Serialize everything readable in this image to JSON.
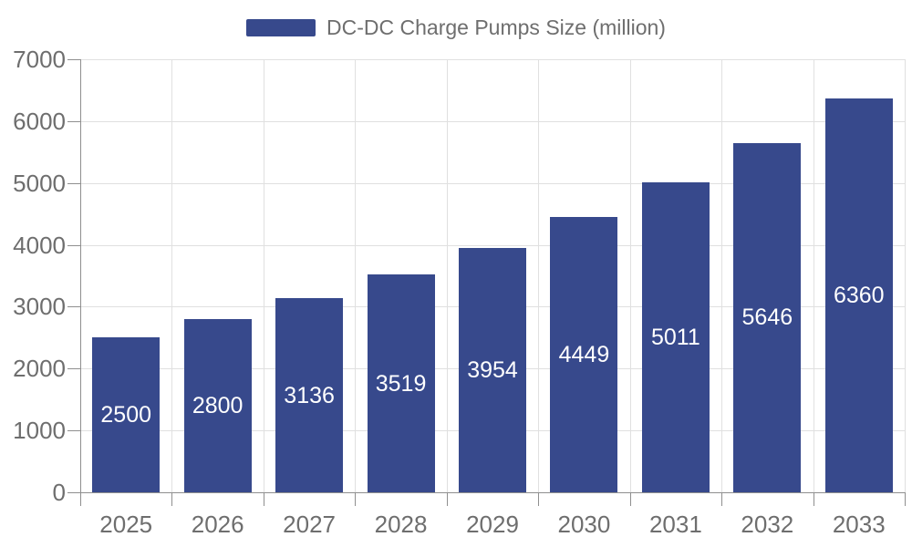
{
  "legend": {
    "label": "DC-DC Charge Pumps Size (million)"
  },
  "chart_data": {
    "type": "bar",
    "title": "DC-DC Charge Pumps Size (million)",
    "categories": [
      "2025",
      "2026",
      "2027",
      "2028",
      "2029",
      "2030",
      "2031",
      "2032",
      "2033"
    ],
    "values": [
      2500,
      2800,
      3136,
      3519,
      3954,
      4449,
      5011,
      5646,
      6360
    ],
    "series_name": "DC-DC Charge Pumps Size (million)",
    "xlabel": "",
    "ylabel": "",
    "ylim": [
      0,
      7000
    ],
    "yticks": [
      0,
      1000,
      2000,
      3000,
      4000,
      5000,
      6000,
      7000
    ],
    "grid": true,
    "legend_position": "top-center",
    "bar_labels_visible": true,
    "bar_label_position": "inside-middle",
    "colors": {
      "bar": "#37498c",
      "bar_label": "#ffffff",
      "axis_text": "#6e6e6e",
      "gridline": "#e0e0e0",
      "axis_line": "#8f8f8f",
      "legend_text": "#6e6e6e",
      "background": "#ffffff"
    }
  }
}
